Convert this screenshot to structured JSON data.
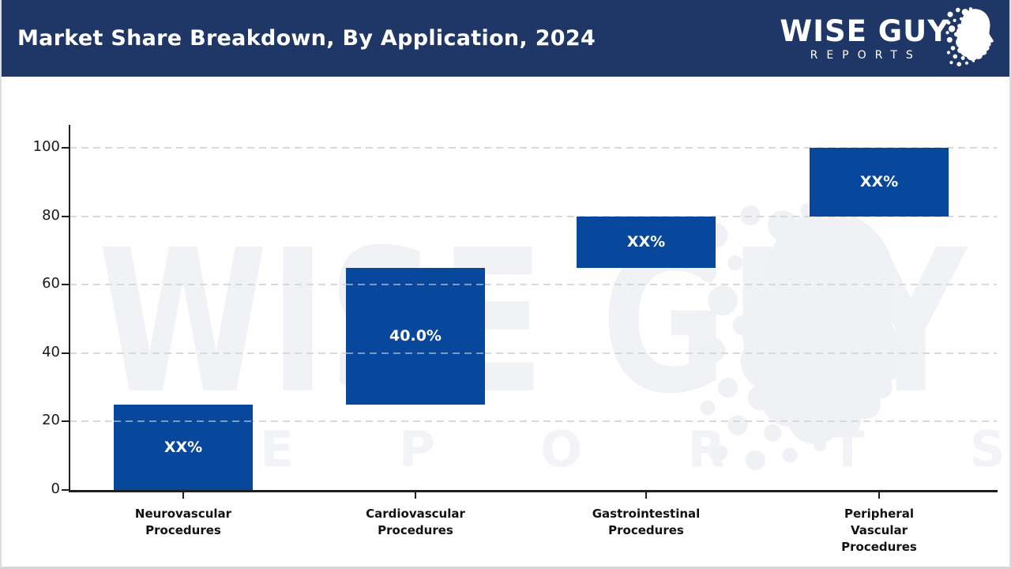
{
  "header": {
    "background_color": "#1f3766",
    "title": "Market Share Breakdown, By Application, 2024",
    "logo": {
      "line1": "WISE GUY",
      "line2": "REPORTS"
    }
  },
  "watermark": {
    "line1": "WISE GUY",
    "line2": "R E P O R T S"
  },
  "chart_data": {
    "type": "bar",
    "subtype": "waterfall-floating-bars",
    "title": "Market Share Breakdown, By Application, 2024",
    "ylim": [
      0,
      100
    ],
    "yticks": [
      0,
      20,
      40,
      60,
      80,
      100
    ],
    "grid": "horizontal-dashed, drawn over bars",
    "legend": "none",
    "bar_color": "#07489c",
    "bar_label_color": "#ffffff",
    "axis_color": "#1f1f1f",
    "gridline_color": "#d9d9d9",
    "categories": [
      "Neurovascular Procedures",
      "Cardiovascular Procedures",
      "Gastrointestinal Procedures",
      "Peripheral Vascular Procedures"
    ],
    "segments": [
      {
        "category": "Neurovascular Procedures",
        "category_lines": [
          "Neurovascular",
          "Procedures"
        ],
        "start": 0,
        "end": 25,
        "label": "XX%"
      },
      {
        "category": "Cardiovascular Procedures",
        "category_lines": [
          "Cardiovascular",
          "Procedures"
        ],
        "start": 25,
        "end": 65,
        "label": "40.0%"
      },
      {
        "category": "Gastrointestinal Procedures",
        "category_lines": [
          "Gastrointestinal",
          "Procedures"
        ],
        "start": 65,
        "end": 80,
        "label": "XX%"
      },
      {
        "category": "Peripheral Vascular Procedures",
        "category_lines": [
          "Peripheral",
          "Vascular",
          "Procedures"
        ],
        "start": 80,
        "end": 100,
        "label": "XX%"
      }
    ]
  }
}
